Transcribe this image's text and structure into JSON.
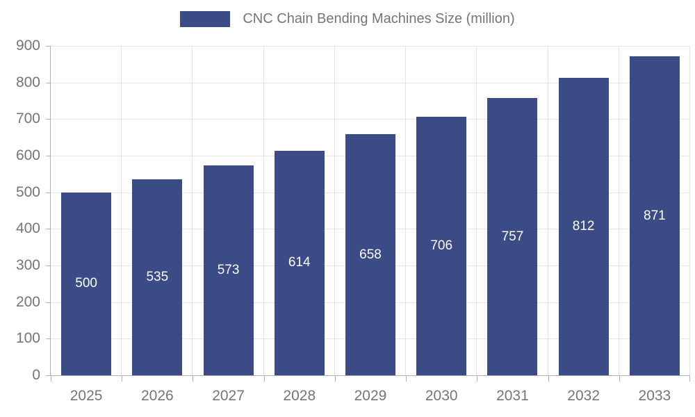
{
  "chart_data": {
    "type": "bar",
    "title": "CNC Chain Bending Machines Size (million)",
    "legend_entries": [
      "CNC Chain Bending Machines Size (million)"
    ],
    "legend_position": "top-center",
    "categories": [
      "2025",
      "2026",
      "2027",
      "2028",
      "2029",
      "2030",
      "2031",
      "2032",
      "2033"
    ],
    "values": [
      500,
      535,
      573,
      614,
      658,
      706,
      757,
      812,
      871
    ],
    "value_labels": [
      "500",
      "535",
      "573",
      "614",
      "658",
      "706",
      "757",
      "812",
      "871"
    ],
    "xlabel": "",
    "ylabel": "",
    "ylim": [
      0,
      900
    ],
    "ytick_step": 100,
    "ytick_labels": [
      "0",
      "100",
      "200",
      "300",
      "400",
      "500",
      "600",
      "700",
      "800",
      "900"
    ],
    "grid": true,
    "colors": {
      "bar": "#3a4b85",
      "value_label": "#ffffff",
      "tick_label": "#757575",
      "legend_text": "#757575",
      "axis_line": "#b0b0b0",
      "gridline": "#e4e4e4"
    }
  }
}
